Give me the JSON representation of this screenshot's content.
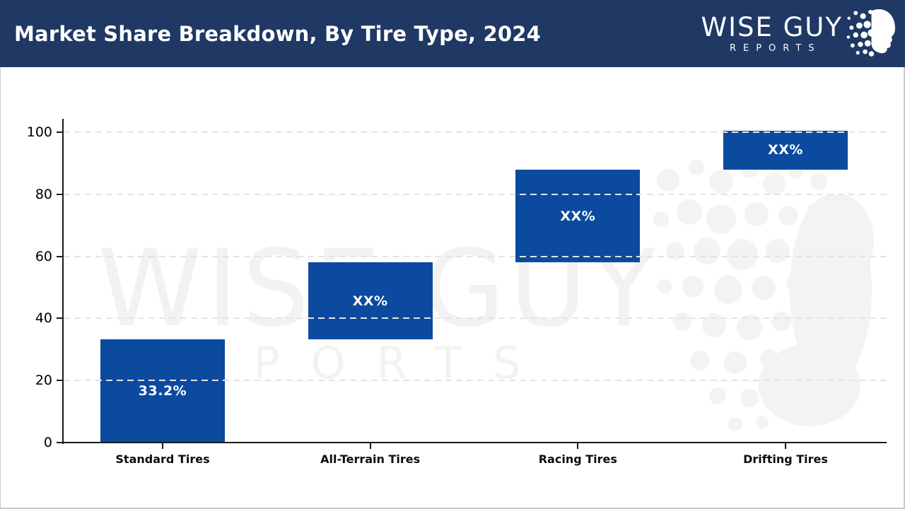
{
  "header": {
    "title": "Market Share Breakdown, By Tire Type, 2024",
    "logo": {
      "line1": "WISE GUY",
      "line2": "REPORTS"
    }
  },
  "watermark": {
    "line1": "WISE GUY",
    "line2": "REPORTS"
  },
  "colors": {
    "header_bg": "#1f3864",
    "bar": "#0b4a9e",
    "bar_label": "#ffffff",
    "grid": "#e4e4e4",
    "axis": "#1a1a1a",
    "watermark": "#f2f2f2"
  },
  "chart_data": {
    "type": "bar",
    "subtype": "waterfall",
    "title": "Market Share Breakdown, By Tire Type, 2024",
    "categories": [
      "Standard Tires",
      "All-Terrain Tires",
      "Racing Tires",
      "Drifting Tires"
    ],
    "segments": [
      {
        "category": "Standard Tires",
        "start": 0,
        "end": 33.2,
        "label": "33.2%"
      },
      {
        "category": "All-Terrain Tires",
        "start": 33.2,
        "end": 58,
        "label": "XX%"
      },
      {
        "category": "Racing Tires",
        "start": 58,
        "end": 88,
        "label": "XX%"
      },
      {
        "category": "Drifting Tires",
        "start": 88,
        "end": 100.5,
        "label": "XX%"
      }
    ],
    "yticks": [
      0,
      20,
      40,
      60,
      80,
      100
    ],
    "ylim": [
      0,
      105
    ],
    "xlabel": "",
    "ylabel": "",
    "grid": "horizontal-dashed",
    "legend": "none"
  }
}
